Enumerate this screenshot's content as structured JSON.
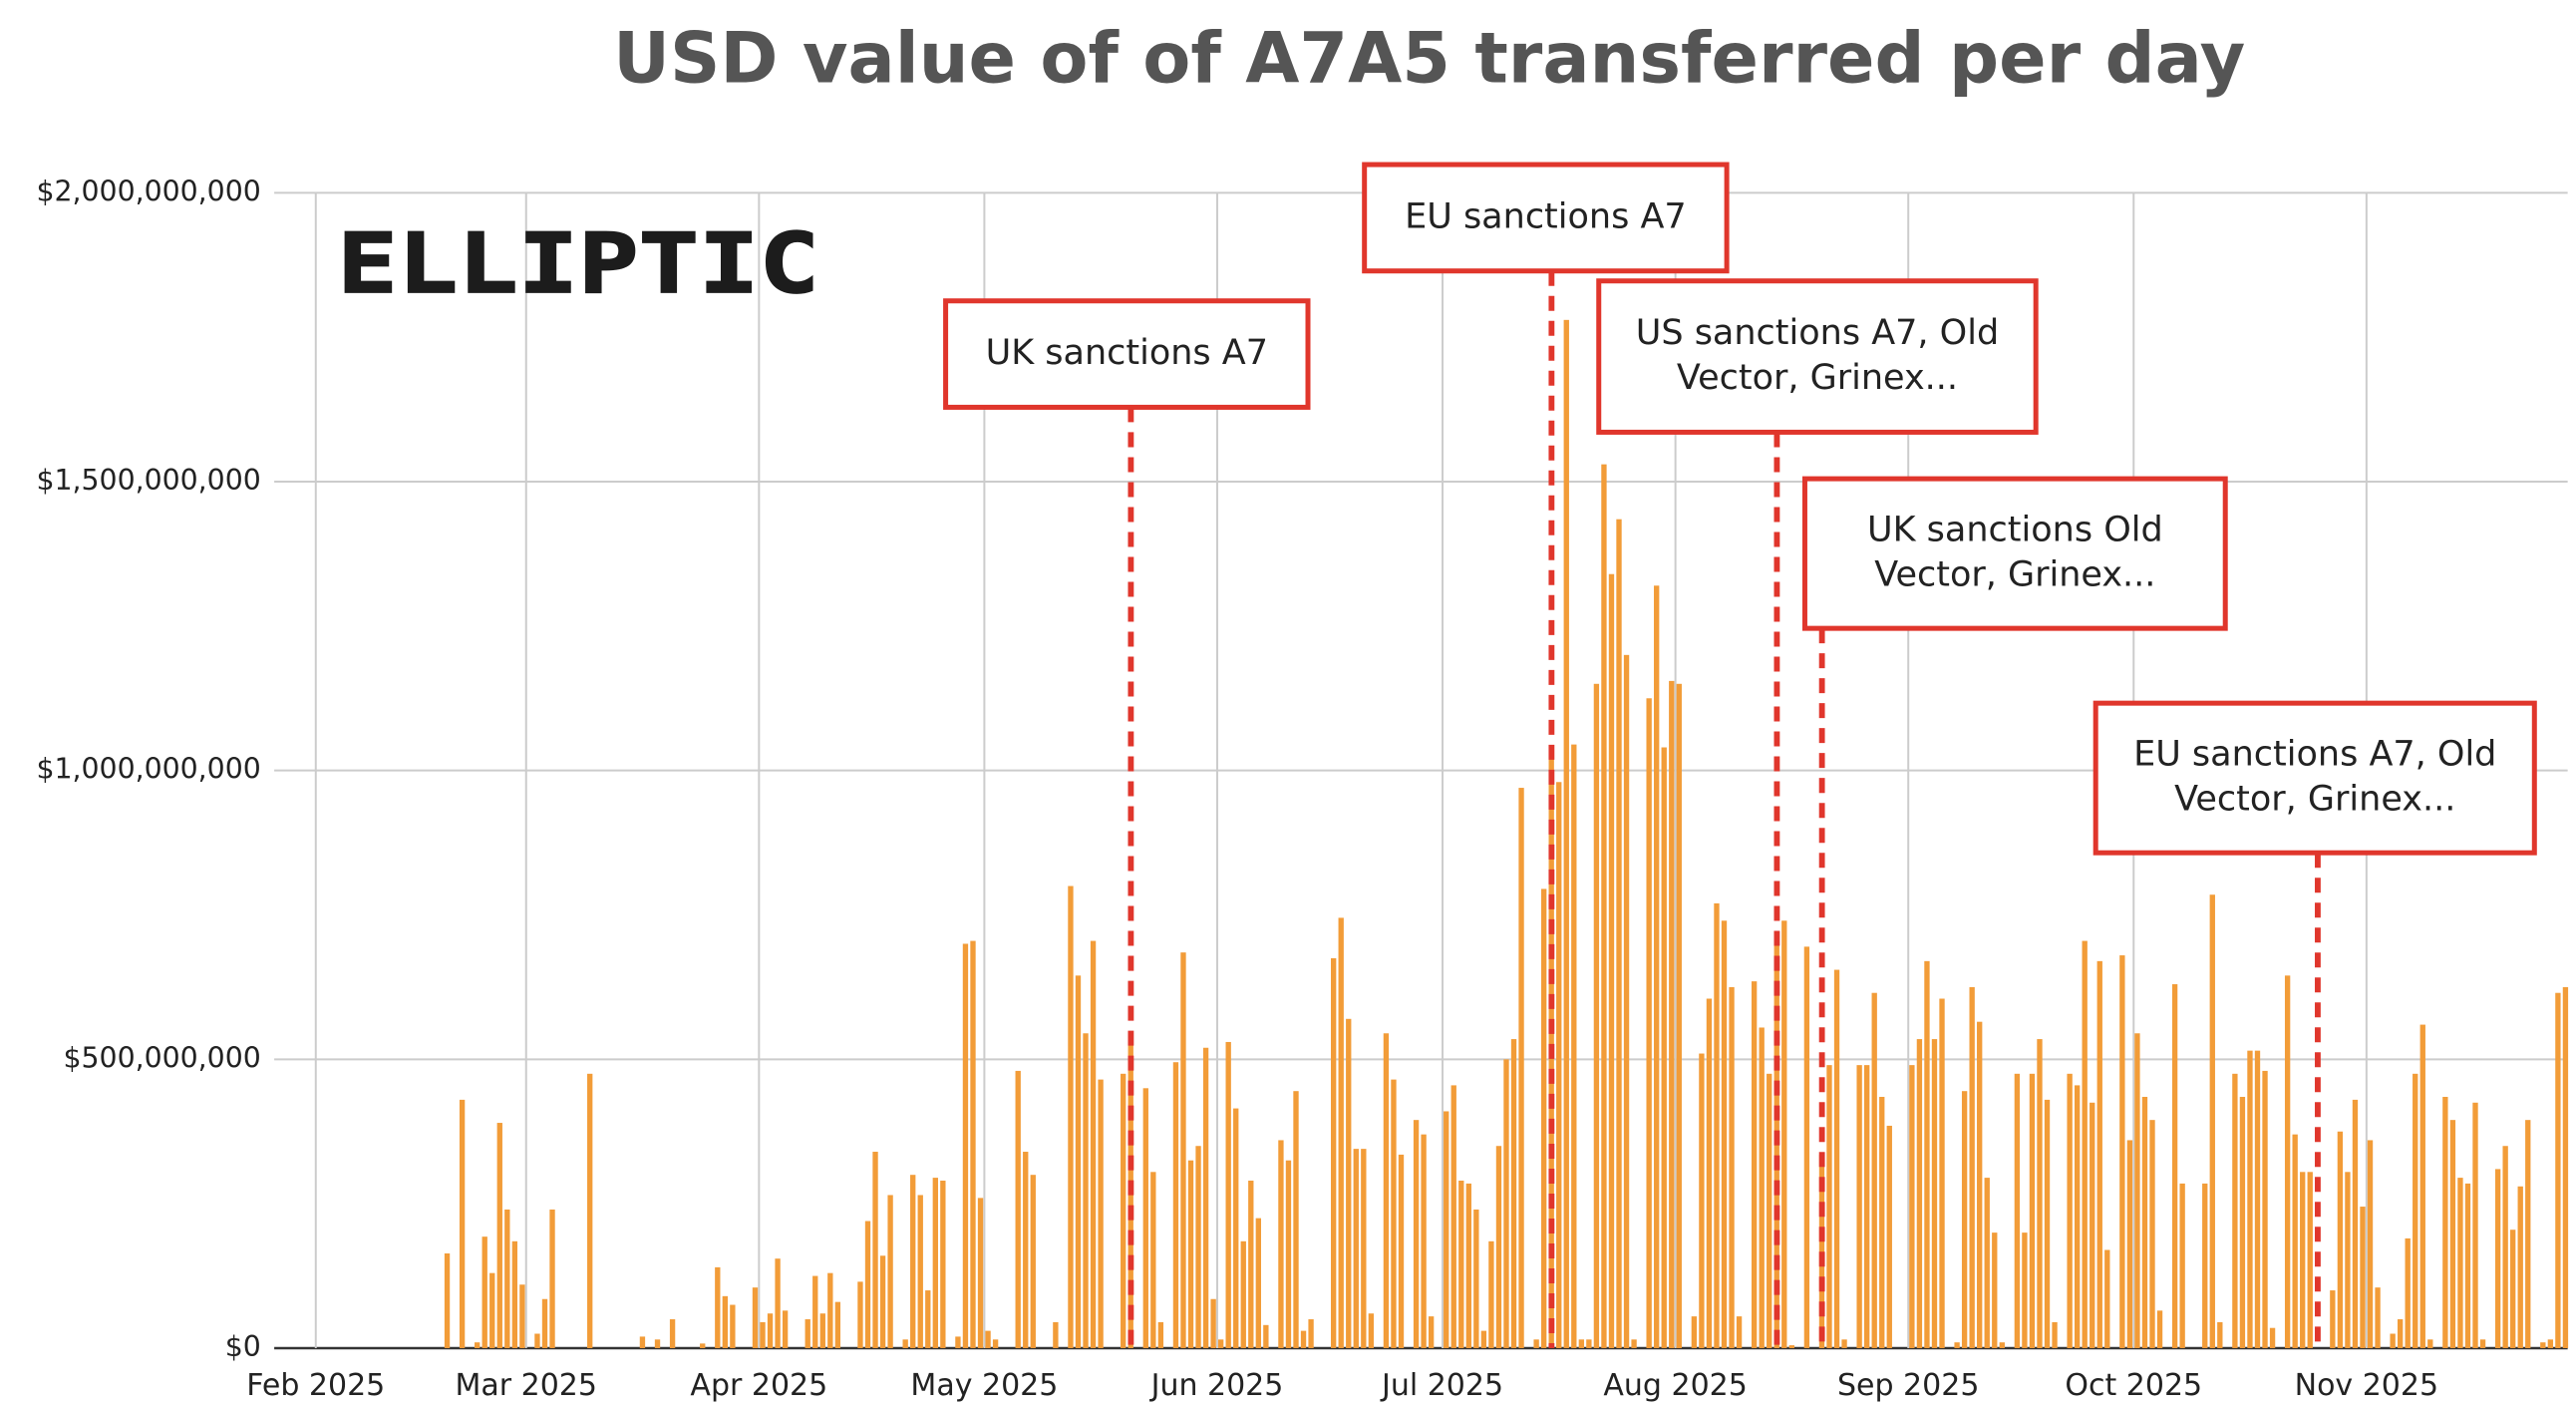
{
  "chart_data": {
    "type": "bar",
    "title": "USD value of of A7A5 transferred per day",
    "logo": "ELLIPTIC",
    "color": "#f29c38",
    "grid": true,
    "ylim": [
      0,
      2000000000
    ],
    "yticks": [
      {
        "value": 0,
        "label": "$0"
      },
      {
        "value": 500000000,
        "label": "$500,000,000"
      },
      {
        "value": 1000000000,
        "label": "$1,000,000,000"
      },
      {
        "value": 1500000000,
        "label": "$1,500,000,000"
      },
      {
        "value": 2000000000,
        "label": "$2,000,000,000"
      }
    ],
    "categories": [
      "Feb 2025",
      null,
      null,
      null,
      null,
      null,
      null,
      null,
      null,
      null,
      null,
      null,
      null,
      null,
      null,
      null,
      null,
      null,
      null,
      null,
      null,
      null,
      null,
      null,
      null,
      null,
      null,
      null,
      "Mar 2025",
      null,
      null,
      null,
      null,
      null,
      null,
      null,
      null,
      null,
      null,
      null,
      null,
      null,
      null,
      null,
      null,
      null,
      null,
      null,
      null,
      null,
      null,
      null,
      null,
      null,
      null,
      null,
      null,
      null,
      null,
      "Apr 2025",
      null,
      null,
      null,
      null,
      null,
      null,
      null,
      null,
      null,
      null,
      null,
      null,
      null,
      null,
      null,
      null,
      null,
      null,
      null,
      null,
      null,
      null,
      null,
      null,
      null,
      null,
      null,
      null,
      null,
      "May 2025",
      null,
      null,
      null,
      null,
      null,
      null,
      null,
      null,
      null,
      null,
      null,
      null,
      null,
      null,
      null,
      null,
      null,
      null,
      null,
      null,
      null,
      null,
      null,
      null,
      null,
      null,
      null,
      null,
      null,
      null,
      "Jun 2025",
      null,
      null,
      null,
      null,
      null,
      null,
      null,
      null,
      null,
      null,
      null,
      null,
      null,
      null,
      null,
      null,
      null,
      null,
      null,
      null,
      null,
      null,
      null,
      null,
      null,
      null,
      null,
      null,
      null,
      "Jul 2025",
      null,
      null,
      null,
      null,
      null,
      null,
      null,
      null,
      null,
      null,
      null,
      null,
      null,
      null,
      null,
      null,
      null,
      null,
      null,
      null,
      null,
      null,
      null,
      null,
      null,
      null,
      null,
      null,
      null,
      null,
      "Aug 2025",
      null,
      null,
      null,
      null,
      null,
      null,
      null,
      null,
      null,
      null,
      null,
      null,
      null,
      null,
      null,
      null,
      null,
      null,
      null,
      null,
      null,
      null,
      null,
      null,
      null,
      null,
      null,
      null,
      null,
      null,
      "Sep 2025",
      null,
      null,
      null,
      null,
      null,
      null,
      null,
      null,
      null,
      null,
      null,
      null,
      null,
      null,
      null,
      null,
      null,
      null,
      null,
      null,
      null,
      null,
      null,
      null,
      null,
      null,
      null,
      null,
      null,
      "Oct 2025",
      null,
      null,
      null,
      null,
      null,
      null,
      null,
      null,
      null,
      null,
      null,
      null,
      null,
      null,
      null,
      null,
      null,
      null,
      null,
      null,
      null,
      null,
      null,
      null,
      null,
      null,
      null,
      null,
      null,
      null,
      "Nov 2025",
      null,
      null,
      null,
      null,
      null,
      null,
      null,
      null,
      null,
      null,
      null,
      null,
      null,
      null,
      null,
      null,
      null,
      null,
      null,
      null,
      null,
      null,
      null,
      null,
      null,
      null
    ],
    "values": [
      0,
      0,
      0,
      0,
      0,
      0,
      0,
      0,
      0,
      0,
      0,
      0,
      0,
      0,
      0,
      0,
      0,
      164000000,
      0,
      430000000,
      0,
      10000000,
      193000000,
      130000000,
      390000000,
      240000000,
      185000000,
      110000000,
      0,
      25000000,
      85000000,
      240000000,
      0,
      0,
      0,
      0,
      475000000,
      0,
      0,
      0,
      0,
      0,
      0,
      20000000,
      0,
      15000000,
      0,
      50000000,
      0,
      0,
      0,
      8000000,
      0,
      140000000,
      90000000,
      75000000,
      0,
      0,
      105000000,
      45000000,
      60000000,
      155000000,
      65000000,
      0,
      0,
      50000000,
      125000000,
      60000000,
      130000000,
      80000000,
      0,
      0,
      115000000,
      220000000,
      340000000,
      160000000,
      265000000,
      0,
      15000000,
      300000000,
      265000000,
      100000000,
      295000000,
      290000000,
      0,
      20000000,
      700000000,
      705000000,
      260000000,
      30000000,
      15000000,
      0,
      0,
      480000000,
      340000000,
      300000000,
      0,
      0,
      45000000,
      0,
      800000000,
      645000000,
      545000000,
      705000000,
      465000000,
      0,
      0,
      475000000,
      525000000,
      0,
      450000000,
      305000000,
      45000000,
      0,
      495000000,
      685000000,
      325000000,
      350000000,
      520000000,
      85000000,
      15000000,
      530000000,
      415000000,
      185000000,
      290000000,
      225000000,
      40000000,
      0,
      360000000,
      325000000,
      445000000,
      30000000,
      50000000,
      0,
      0,
      675000000,
      745000000,
      570000000,
      345000000,
      345000000,
      60000000,
      0,
      545000000,
      465000000,
      335000000,
      0,
      395000000,
      370000000,
      55000000,
      0,
      410000000,
      455000000,
      290000000,
      285000000,
      240000000,
      30000000,
      185000000,
      350000000,
      500000000,
      535000000,
      970000000,
      0,
      15000000,
      795000000,
      1040000000,
      980000000,
      1780000000,
      1045000000,
      15000000,
      15000000,
      1150000000,
      1530000000,
      1340000000,
      1435000000,
      1200000000,
      15000000,
      0,
      1125000000,
      1320000000,
      1040000000,
      1155000000,
      1150000000,
      0,
      55000000,
      510000000,
      605000000,
      770000000,
      740000000,
      625000000,
      55000000,
      0,
      635000000,
      555000000,
      475000000,
      720000000,
      740000000,
      5000000,
      0,
      695000000,
      0,
      335000000,
      490000000,
      655000000,
      15000000,
      0,
      490000000,
      490000000,
      615000000,
      435000000,
      385000000,
      0,
      0,
      490000000,
      535000000,
      670000000,
      535000000,
      605000000,
      0,
      10000000,
      445000000,
      625000000,
      565000000,
      295000000,
      200000000,
      10000000,
      0,
      475000000,
      200000000,
      475000000,
      535000000,
      430000000,
      45000000,
      0,
      475000000,
      455000000,
      705000000,
      425000000,
      670000000,
      170000000,
      0,
      680000000,
      360000000,
      545000000,
      435000000,
      395000000,
      65000000,
      0,
      630000000,
      285000000,
      0,
      0,
      285000000,
      785000000,
      45000000,
      0,
      475000000,
      435000000,
      515000000,
      515000000,
      480000000,
      35000000,
      0,
      645000000,
      370000000,
      305000000,
      305000000,
      0,
      0,
      100000000,
      375000000,
      305000000,
      430000000,
      245000000,
      360000000,
      105000000,
      0,
      25000000,
      50000000,
      190000000,
      475000000,
      560000000,
      15000000,
      0,
      435000000,
      395000000,
      295000000,
      285000000,
      425000000,
      15000000,
      0,
      310000000,
      350000000,
      205000000,
      280000000,
      395000000,
      0,
      10000000,
      15000000,
      615000000,
      625000000
    ],
    "annotations": [
      {
        "at": 108,
        "lines": [
          "UK sanctions A7"
        ]
      },
      {
        "at": 164,
        "lines": [
          "EU sanctions A7"
        ]
      },
      {
        "at": 194,
        "lines": [
          "US sanctions A7, Old",
          "Vector, Grinex..."
        ]
      },
      {
        "at": 200,
        "lines": [
          "UK sanctions Old",
          "Vector, Grinex..."
        ]
      },
      {
        "at": 266,
        "lines": [
          "EU sanctions A7, Old",
          "Vector, Grinex..."
        ]
      }
    ]
  }
}
